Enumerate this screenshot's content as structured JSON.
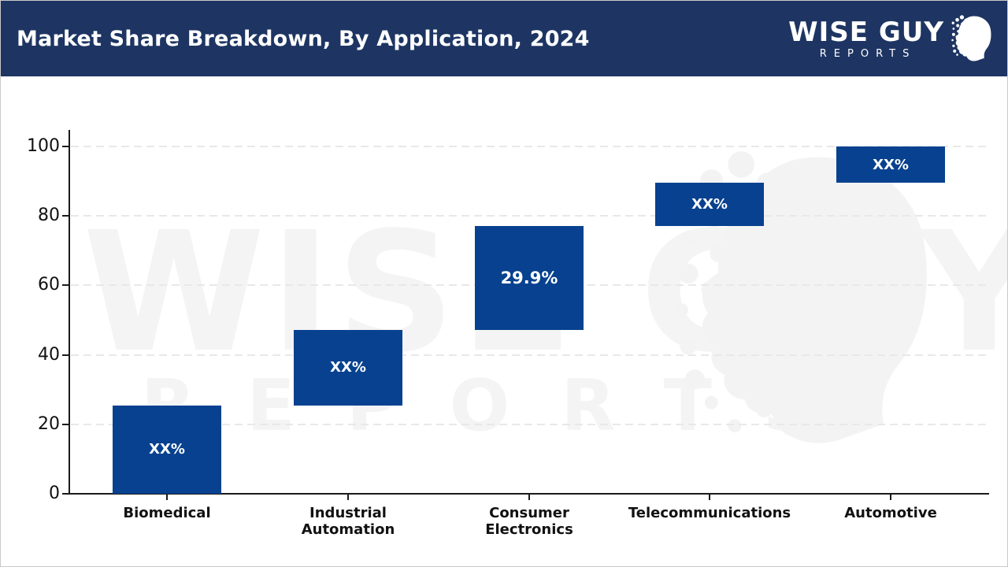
{
  "header": {
    "title": "Market Share Breakdown, By Application, 2024",
    "logo": {
      "line1": "WISE GUY",
      "line2": "REPORTS"
    }
  },
  "watermark": {
    "line1": "WISE GUY",
    "line2": "REPORTS"
  },
  "chart_data": {
    "type": "bar",
    "subtype": "waterfall",
    "title": "Market Share Breakdown, By Application, 2024",
    "categories": [
      "Biomedical",
      "Industrial Automation",
      "Consumer Electronics",
      "Telecommunications",
      "Automotive"
    ],
    "category_label_lines": [
      [
        "Biomedical"
      ],
      [
        "Industrial",
        "Automation"
      ],
      [
        "Consumer",
        "Electronics"
      ],
      [
        "Telecommunications"
      ],
      [
        "Automotive"
      ]
    ],
    "series": [
      {
        "name": "Market share (%)",
        "segments": [
          {
            "category": "Biomedical",
            "start": 0,
            "end": 25.5,
            "label": "XX%"
          },
          {
            "category": "Industrial Automation",
            "start": 25.5,
            "end": 47.2,
            "label": "XX%"
          },
          {
            "category": "Consumer Electronics",
            "start": 47.2,
            "end": 77.1,
            "label": "29.9%"
          },
          {
            "category": "Telecommunications",
            "start": 77.1,
            "end": 89.5,
            "label": "XX%"
          },
          {
            "category": "Automotive",
            "start": 89.5,
            "end": 100,
            "label": "XX%"
          }
        ]
      }
    ],
    "ylim": [
      0,
      100
    ],
    "yticks": [
      0,
      20,
      40,
      60,
      80,
      100
    ],
    "grid": "horizontal-dashed",
    "legend": "none",
    "bar_color": "#07418f",
    "bar_label_color": "#ffffff",
    "header_color": "#1e3563"
  }
}
